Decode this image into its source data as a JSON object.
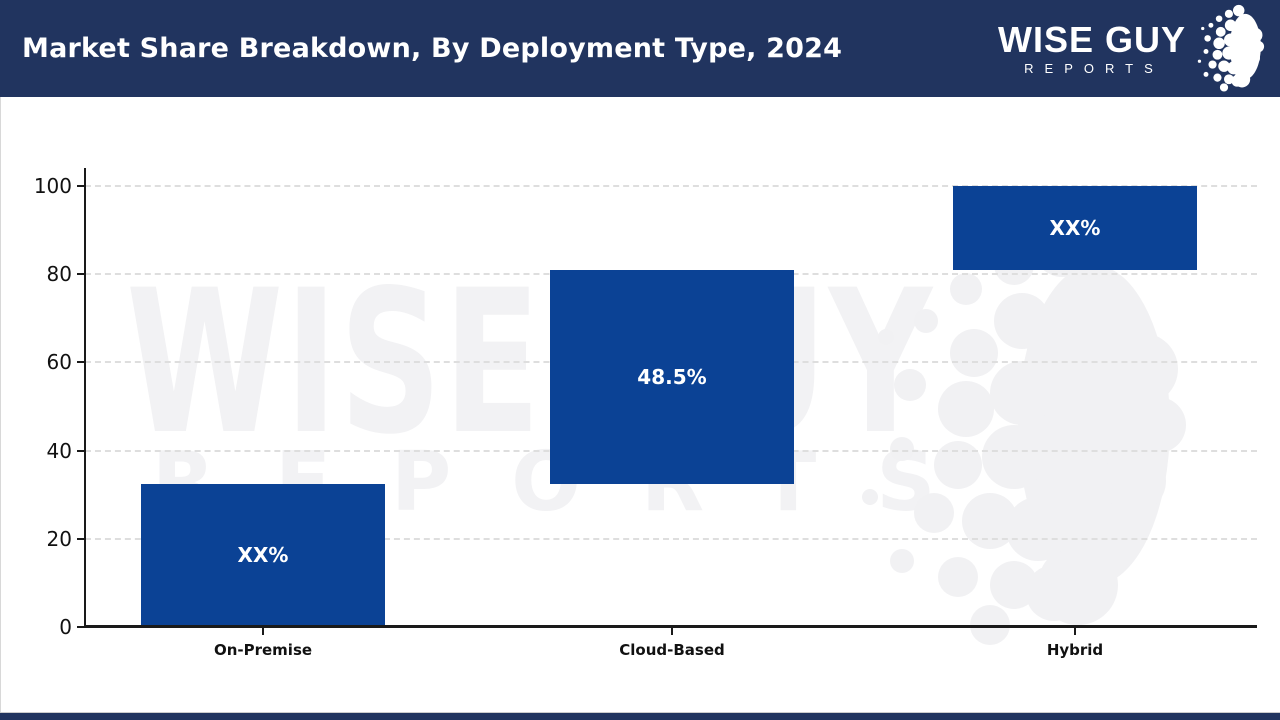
{
  "header": {
    "title": "Market Share Breakdown, By Deployment Type, 2024",
    "logo": {
      "line1": "WISE GUY",
      "line2": "REPORTS"
    }
  },
  "watermark": {
    "line1": "WISE GUY",
    "line2": "REPORTS"
  },
  "chart_data": {
    "type": "bar",
    "subtype": "floating-waterfall",
    "title": "Market Share Breakdown, By Deployment Type, 2024",
    "categories": [
      "On-Premise",
      "Cloud-Based",
      "Hybrid"
    ],
    "series": [
      {
        "name": "Market Share (%)",
        "segments": [
          {
            "category": "On-Premise",
            "start": 0,
            "end": 32.5,
            "label": "XX%"
          },
          {
            "category": "Cloud-Based",
            "start": 32.5,
            "end": 81,
            "label": "48.5%"
          },
          {
            "category": "Hybrid",
            "start": 81,
            "end": 100,
            "label": "XX%"
          }
        ]
      }
    ],
    "xlabel": "",
    "ylabel": "",
    "ylim": [
      0,
      100
    ],
    "yticks": [
      0,
      20,
      40,
      60,
      80,
      100
    ],
    "grid": "horizontal-dashed",
    "legend": "none",
    "colors": {
      "bar": "#0B4295",
      "bar_label": "#FFFFFF",
      "grid": "#DEDEDE",
      "axis": "#1A1A1A",
      "header_bg": "#21345F",
      "watermark": "#F2F2F4"
    }
  }
}
